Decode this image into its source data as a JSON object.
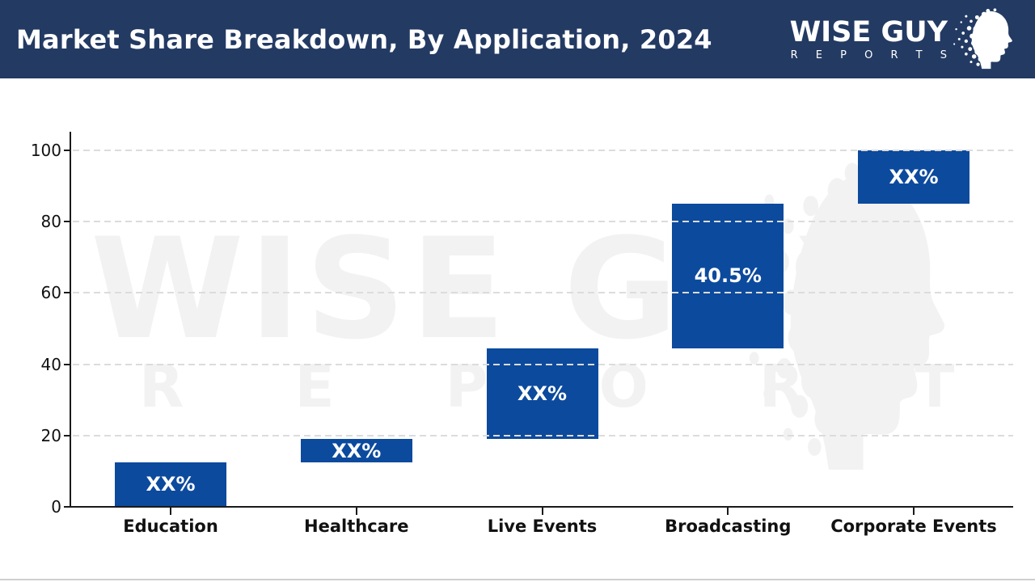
{
  "header": {
    "title": "Market Share Breakdown, By Application, 2024",
    "logo": {
      "line1": "WISE GUY",
      "line2": "REPORTS",
      "head_icon": "dotted-face-profile"
    }
  },
  "watermark": {
    "line1": "WISE GUY",
    "line2": "REPORTS",
    "head_icon": "dotted-face-profile"
  },
  "colors": {
    "header_bg": "#233a63",
    "bar_fill": "#0c4a9d",
    "bar_label_text": "#ffffff",
    "gridline": "#dcdcdc",
    "axis": "#1a1a1a",
    "tick_label_text": "#111111",
    "watermark": "#f2f2f2",
    "bottom_rule": "#cfcfcf"
  },
  "chart_data": {
    "type": "bar",
    "subtype": "floating-waterfall",
    "title": "Market Share Breakdown, By Application, 2024",
    "xlabel": "",
    "ylabel": "",
    "categories": [
      "Education",
      "Healthcare",
      "Live Events",
      "Broadcasting",
      "Corporate Events"
    ],
    "segments": [
      {
        "category": "Education",
        "start": 0,
        "end": 12.5,
        "value": 12.5,
        "label": "XX%"
      },
      {
        "category": "Healthcare",
        "start": 12.5,
        "end": 19,
        "value": 6.5,
        "label": "XX%"
      },
      {
        "category": "Live Events",
        "start": 19,
        "end": 44.5,
        "value": 25.5,
        "label": "XX%"
      },
      {
        "category": "Broadcasting",
        "start": 44.5,
        "end": 85,
        "value": 40.5,
        "label": "40.5%"
      },
      {
        "category": "Corporate Events",
        "start": 85,
        "end": 100,
        "value": 15,
        "label": "XX%"
      }
    ],
    "yticks": [
      0,
      20,
      40,
      60,
      80,
      100
    ],
    "ylim": [
      0,
      105
    ],
    "grid": "horizontal-dashed",
    "legend": "none"
  }
}
